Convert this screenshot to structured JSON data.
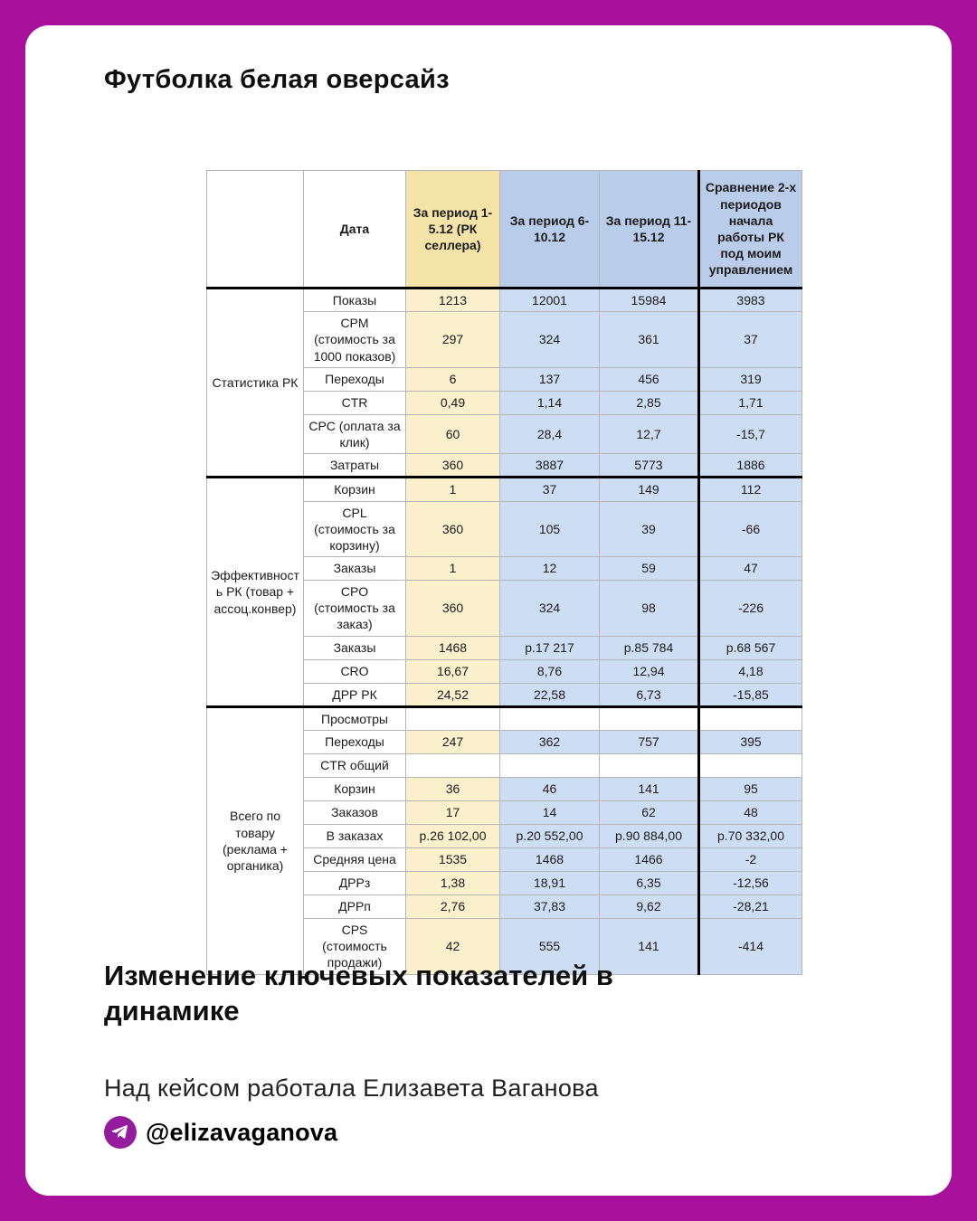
{
  "page": {
    "title": "Футболка белая оверсайз",
    "subtitle": "Изменение ключевых показателей в динамике",
    "credit": "Над кейсом работала Елизавета Ваганова",
    "handle": "@elizavaganova"
  },
  "colors": {
    "background": "#a8119c",
    "yellow_header": "#f3e3a6",
    "yellow_cell": "#faf0cc",
    "blue_header": "#b9cce9",
    "blue_cell": "#cdddf3",
    "telegram": "#951b9e"
  },
  "table": {
    "header": {
      "date_label": "Дата",
      "columns": [
        "За период 1-5.12 (РК селлера)",
        "За период 6-10.12",
        "За период 11-15.12",
        "Сравнение 2-х периодов начала работы РК под моим управлением"
      ]
    },
    "groups": [
      {
        "label": "Статистика РК",
        "rows": [
          {
            "label": "Показы",
            "values": [
              "1213",
              "12001",
              "15984",
              "3983"
            ]
          },
          {
            "label": "CPM (стоимость за 1000 показов)",
            "values": [
              "297",
              "324",
              "361",
              "37"
            ]
          },
          {
            "label": "Переходы",
            "values": [
              "6",
              "137",
              "456",
              "319"
            ]
          },
          {
            "label": "CTR",
            "values": [
              "0,49",
              "1,14",
              "2,85",
              "1,71"
            ]
          },
          {
            "label": "CPC (оплата за клик)",
            "values": [
              "60",
              "28,4",
              "12,7",
              "-15,7"
            ]
          },
          {
            "label": "Затраты",
            "values": [
              "360",
              "3887",
              "5773",
              "1886"
            ]
          }
        ]
      },
      {
        "label": "Эффективность РК (товар + ассоц.конвер)",
        "rows": [
          {
            "label": "Корзин",
            "values": [
              "1",
              "37",
              "149",
              "112"
            ]
          },
          {
            "label": "CPL (стоимость за корзину)",
            "values": [
              "360",
              "105",
              "39",
              "-66"
            ]
          },
          {
            "label": "Заказы",
            "values": [
              "1",
              "12",
              "59",
              "47"
            ]
          },
          {
            "label": "CPO (стоимость за заказ)",
            "values": [
              "360",
              "324",
              "98",
              "-226"
            ]
          },
          {
            "label": "Заказы",
            "values": [
              "1468",
              "р.17 217",
              "р.85 784",
              "р.68 567"
            ]
          },
          {
            "label": "CRO",
            "values": [
              "16,67",
              "8,76",
              "12,94",
              "4,18"
            ]
          },
          {
            "label": "ДРР РК",
            "values": [
              "24,52",
              "22,58",
              "6,73",
              "-15,85"
            ]
          }
        ]
      },
      {
        "label": "Всего по товару (реклама + органика)",
        "rows": [
          {
            "label": "Просмотры",
            "values": [
              "",
              "",
              "",
              ""
            ]
          },
          {
            "label": "Переходы",
            "values": [
              "247",
              "362",
              "757",
              "395"
            ]
          },
          {
            "label": "CTR общий",
            "values": [
              "",
              "",
              "",
              ""
            ]
          },
          {
            "label": "Корзин",
            "values": [
              "36",
              "46",
              "141",
              "95"
            ]
          },
          {
            "label": "Заказов",
            "values": [
              "17",
              "14",
              "62",
              "48"
            ]
          },
          {
            "label": "В заказах",
            "values": [
              "р.26 102,00",
              "р.20 552,00",
              "р.90 884,00",
              "р.70 332,00"
            ]
          },
          {
            "label": "Средняя цена",
            "values": [
              "1535",
              "1468",
              "1466",
              "-2"
            ]
          },
          {
            "label": "ДРРз",
            "values": [
              "1,38",
              "18,91",
              "6,35",
              "-12,56"
            ]
          },
          {
            "label": "ДРРп",
            "values": [
              "2,76",
              "37,83",
              "9,62",
              "-28,21"
            ]
          },
          {
            "label": "CPS (стоимость продажи)",
            "values": [
              "42",
              "555",
              "141",
              "-414"
            ]
          }
        ]
      }
    ]
  }
}
